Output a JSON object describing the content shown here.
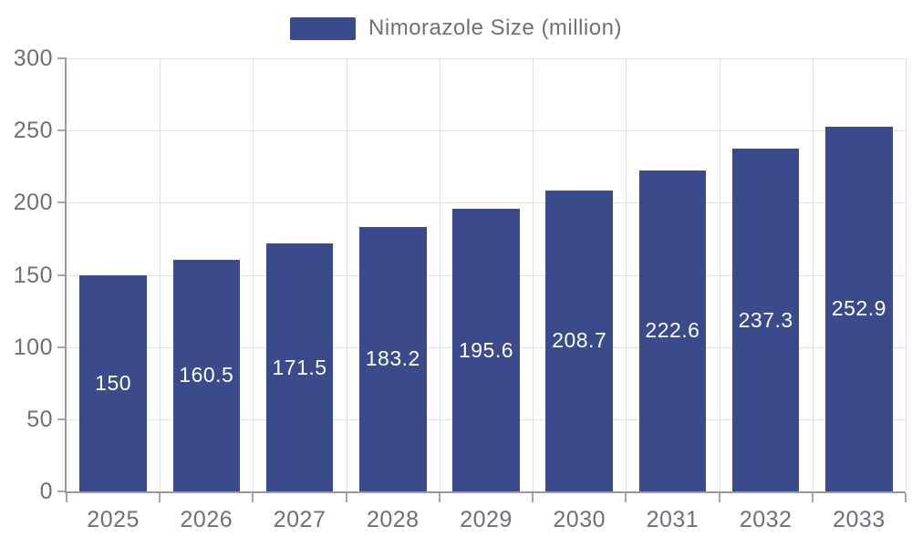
{
  "legend": {
    "label": "Nimorazole Size (million)"
  },
  "chart_data": {
    "type": "bar",
    "title": "",
    "categories": [
      "2025",
      "2026",
      "2027",
      "2028",
      "2029",
      "2030",
      "2031",
      "2032",
      "2033"
    ],
    "series": [
      {
        "name": "Nimorazole Size (million)",
        "values": [
          150,
          160.5,
          171.5,
          183.2,
          195.6,
          208.7,
          222.6,
          237.3,
          252.9
        ]
      }
    ],
    "value_labels": [
      "150",
      "160.5",
      "171.5",
      "183.2",
      "195.6",
      "208.7",
      "222.6",
      "237.3",
      "252.9"
    ],
    "xlabel": "",
    "ylabel": "",
    "ylim": [
      0,
      300
    ],
    "yticks": [
      0,
      50,
      100,
      150,
      200,
      250,
      300
    ],
    "grid": true,
    "legend_position": "top",
    "colors": {
      "bar": "#3A4A8B",
      "axis_line": "#999999",
      "gridline": "#E0E0E0",
      "axis_label": "#6E7079",
      "legend_text": "#6E7079",
      "value_label": "#FFFFFF"
    }
  }
}
